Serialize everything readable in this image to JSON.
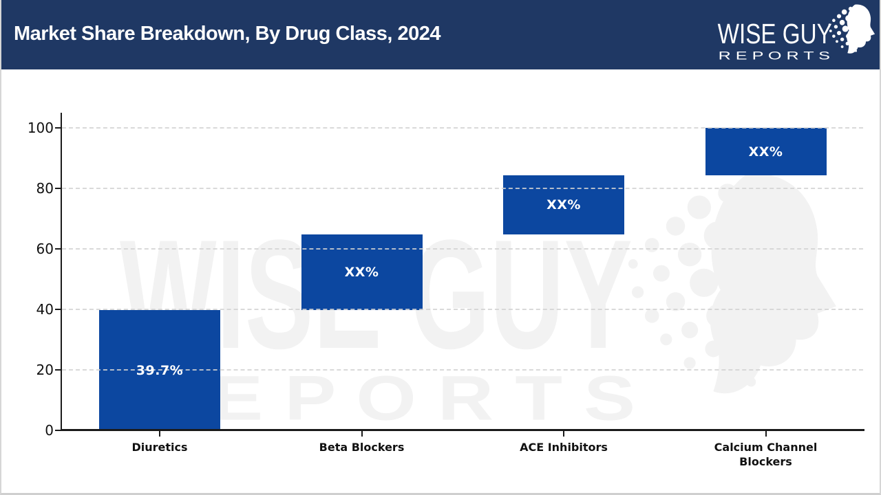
{
  "header": {
    "title": "Market Share Breakdown, By Drug Class, 2024",
    "background_color": "#1f3864"
  },
  "logo": {
    "line1": "WISE GUY",
    "line2": "R E P O R T S"
  },
  "watermark": {
    "text": "WISE GUY REPORTS"
  },
  "chart_data": {
    "type": "bar",
    "subtype": "waterfall",
    "title": "Market Share Breakdown, By Drug Class, 2024",
    "categories": [
      "Diuretics",
      "Beta Blockers",
      "ACE Inhibitors",
      "Calcium Channel Blockers"
    ],
    "segments": [
      {
        "category": "Diuretics",
        "start": 0,
        "end": 39.7,
        "label": "39.7%"
      },
      {
        "category": "Beta Blockers",
        "start": 39.7,
        "end": 64.8,
        "label": "XX%"
      },
      {
        "category": "ACE Inhibitors",
        "start": 64.8,
        "end": 84.3,
        "label": "XX%"
      },
      {
        "category": "Calcium Channel Blockers",
        "start": 84.3,
        "end": 100,
        "label": "XX%"
      }
    ],
    "ylim": [
      0,
      100
    ],
    "yticks": [
      0,
      20,
      40,
      60,
      80,
      100
    ],
    "ytick_labels": [
      "0",
      "20",
      "40",
      "60",
      "80",
      "100"
    ],
    "grid": "horizontal-dashed",
    "legend": "none",
    "bar_color": "#0c47a0",
    "bar_label_color": "#ffffff",
    "axis_color": "#1a1a1a",
    "gridline_color": "#d9d9d9"
  }
}
